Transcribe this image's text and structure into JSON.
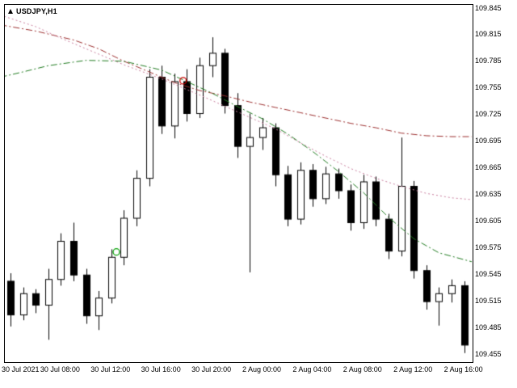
{
  "window": {
    "symbol_label": "USDJPY,H1"
  },
  "chart_data": {
    "type": "candlestick",
    "symbol": "USDJPY",
    "timeframe": "H1",
    "ylim": [
      109.455,
      109.845
    ],
    "price_ticks": [
      "109.845",
      "109.815",
      "109.785",
      "109.755",
      "109.725",
      "109.695",
      "109.665",
      "109.635",
      "109.605",
      "109.575",
      "109.545",
      "109.515",
      "109.485",
      "109.455"
    ],
    "time_ticks": [
      {
        "index": 0,
        "label": "30 Jul 2021"
      },
      {
        "index": 4,
        "label": "30 Jul 08:00"
      },
      {
        "index": 8,
        "label": "30 Jul 12:00"
      },
      {
        "index": 12,
        "label": "30 Jul 16:00"
      },
      {
        "index": 16,
        "label": "30 Jul 20:00"
      },
      {
        "index": 20,
        "label": "2 Aug 00:00"
      },
      {
        "index": 24,
        "label": "2 Aug 04:00"
      },
      {
        "index": 28,
        "label": "2 Aug 08:00"
      },
      {
        "index": 32,
        "label": "2 Aug 12:00"
      },
      {
        "index": 36,
        "label": "2 Aug 16:00"
      }
    ],
    "candles": [
      {
        "t": "30 Jul 04:00",
        "o": 109.538,
        "h": 109.547,
        "l": 109.487,
        "c": 109.5
      },
      {
        "t": "30 Jul 05:00",
        "o": 109.5,
        "h": 109.531,
        "l": 109.494,
        "c": 109.524
      },
      {
        "t": "30 Jul 06:00",
        "o": 109.524,
        "h": 109.529,
        "l": 109.502,
        "c": 109.511
      },
      {
        "t": "30 Jul 07:00",
        "o": 109.511,
        "h": 109.552,
        "l": 109.472,
        "c": 109.54
      },
      {
        "t": "30 Jul 08:00",
        "o": 109.54,
        "h": 109.592,
        "l": 109.533,
        "c": 109.583
      },
      {
        "t": "30 Jul 09:00",
        "o": 109.583,
        "h": 109.604,
        "l": 109.538,
        "c": 109.545
      },
      {
        "t": "30 Jul 10:00",
        "o": 109.545,
        "h": 109.552,
        "l": 109.49,
        "c": 109.499
      },
      {
        "t": "30 Jul 11:00",
        "o": 109.499,
        "h": 109.527,
        "l": 109.483,
        "c": 109.519
      },
      {
        "t": "30 Jul 12:00",
        "o": 109.519,
        "h": 109.574,
        "l": 109.513,
        "c": 109.565
      },
      {
        "t": "30 Jul 13:00",
        "o": 109.565,
        "h": 109.618,
        "l": 109.556,
        "c": 109.609
      },
      {
        "t": "30 Jul 14:00",
        "o": 109.609,
        "h": 109.663,
        "l": 109.6,
        "c": 109.654
      },
      {
        "t": "30 Jul 15:00",
        "o": 109.654,
        "h": 109.777,
        "l": 109.645,
        "c": 109.768
      },
      {
        "t": "30 Jul 16:00",
        "o": 109.768,
        "h": 109.781,
        "l": 109.704,
        "c": 109.713
      },
      {
        "t": "30 Jul 17:00",
        "o": 109.713,
        "h": 109.772,
        "l": 109.699,
        "c": 109.763
      },
      {
        "t": "30 Jul 18:00",
        "o": 109.763,
        "h": 109.777,
        "l": 109.718,
        "c": 109.727
      },
      {
        "t": "30 Jul 19:00",
        "o": 109.727,
        "h": 109.79,
        "l": 109.722,
        "c": 109.781
      },
      {
        "t": "30 Jul 20:00",
        "o": 109.781,
        "h": 109.813,
        "l": 109.768,
        "c": 109.795
      },
      {
        "t": "30 Jul 21:00",
        "o": 109.795,
        "h": 109.8,
        "l": 109.727,
        "c": 109.736
      },
      {
        "t": "30 Jul 22:00",
        "o": 109.736,
        "h": 109.75,
        "l": 109.677,
        "c": 109.69
      },
      {
        "t": "30 Jul 23:00",
        "o": 109.69,
        "h": 109.727,
        "l": 109.548,
        "c": 109.7
      },
      {
        "t": "2 Aug 00:00",
        "o": 109.7,
        "h": 109.722,
        "l": 109.686,
        "c": 109.711
      },
      {
        "t": "2 Aug 01:00",
        "o": 109.711,
        "h": 109.716,
        "l": 109.645,
        "c": 109.658
      },
      {
        "t": "2 Aug 02:00",
        "o": 109.658,
        "h": 109.668,
        "l": 109.6,
        "c": 109.608
      },
      {
        "t": "2 Aug 03:00",
        "o": 109.608,
        "h": 109.672,
        "l": 109.602,
        "c": 109.663
      },
      {
        "t": "2 Aug 04:00",
        "o": 109.663,
        "h": 109.67,
        "l": 109.622,
        "c": 109.631
      },
      {
        "t": "2 Aug 05:00",
        "o": 109.631,
        "h": 109.667,
        "l": 109.625,
        "c": 109.659
      },
      {
        "t": "2 Aug 06:00",
        "o": 109.659,
        "h": 109.665,
        "l": 109.631,
        "c": 109.64
      },
      {
        "t": "2 Aug 07:00",
        "o": 109.64,
        "h": 109.647,
        "l": 109.595,
        "c": 109.604
      },
      {
        "t": "2 Aug 08:00",
        "o": 109.604,
        "h": 109.658,
        "l": 109.597,
        "c": 109.65
      },
      {
        "t": "2 Aug 09:00",
        "o": 109.65,
        "h": 109.656,
        "l": 109.6,
        "c": 109.608
      },
      {
        "t": "2 Aug 10:00",
        "o": 109.608,
        "h": 109.614,
        "l": 109.563,
        "c": 109.572
      },
      {
        "t": "2 Aug 11:00",
        "o": 109.572,
        "h": 109.7,
        "l": 109.566,
        "c": 109.645
      },
      {
        "t": "2 Aug 12:00",
        "o": 109.645,
        "h": 109.651,
        "l": 109.541,
        "c": 109.55
      },
      {
        "t": "2 Aug 13:00",
        "o": 109.55,
        "h": 109.556,
        "l": 109.506,
        "c": 109.515
      },
      {
        "t": "2 Aug 14:00",
        "o": 109.515,
        "h": 109.531,
        "l": 109.488,
        "c": 109.524
      },
      {
        "t": "2 Aug 15:00",
        "o": 109.524,
        "h": 109.54,
        "l": 109.514,
        "c": 109.533
      },
      {
        "t": "2 Aug 16:00",
        "o": 109.533,
        "h": 109.538,
        "l": 109.457,
        "c": 109.466
      }
    ],
    "moving_averages": [
      {
        "name": "ma-slow-red",
        "color": "#9b2d2d",
        "style": "dash-dot",
        "points": [
          [
            -0.8,
            109.827
          ],
          [
            2,
            109.82
          ],
          [
            5,
            109.81
          ],
          [
            7,
            109.8
          ],
          [
            9,
            109.786
          ],
          [
            11,
            109.774
          ],
          [
            13,
            109.762
          ],
          [
            15,
            109.753
          ],
          [
            17,
            109.747
          ],
          [
            19,
            109.74
          ],
          [
            21,
            109.734
          ],
          [
            23,
            109.728
          ],
          [
            25,
            109.722
          ],
          [
            27,
            109.716
          ],
          [
            29,
            109.711
          ],
          [
            31,
            109.705
          ],
          [
            33,
            109.702
          ],
          [
            35,
            109.701
          ],
          [
            36.6,
            109.701
          ]
        ]
      },
      {
        "name": "ma-fast-pink",
        "color": "#c77b9b",
        "style": "dot",
        "points": [
          [
            -0.8,
            109.838
          ],
          [
            2,
            109.825
          ],
          [
            4,
            109.812
          ],
          [
            6,
            109.8
          ],
          [
            9,
            109.782
          ],
          [
            12,
            109.766
          ],
          [
            15,
            109.748
          ],
          [
            18,
            109.729
          ],
          [
            21,
            109.71
          ],
          [
            23,
            109.694
          ],
          [
            25,
            109.679
          ],
          [
            27,
            109.665
          ],
          [
            29,
            109.654
          ],
          [
            31,
            109.645
          ],
          [
            33,
            109.637
          ],
          [
            35,
            109.632
          ],
          [
            36.6,
            109.63
          ]
        ]
      },
      {
        "name": "ma-green",
        "color": "#1f7a1f",
        "style": "dash-dot",
        "points": [
          [
            -0.8,
            109.768
          ],
          [
            1,
            109.774
          ],
          [
            3,
            109.781
          ],
          [
            6,
            109.787
          ],
          [
            9,
            109.786
          ],
          [
            12,
            109.776
          ],
          [
            14,
            109.763
          ],
          [
            16,
            109.75
          ],
          [
            18,
            109.735
          ],
          [
            20,
            109.721
          ],
          [
            22,
            109.704
          ],
          [
            24,
            109.684
          ],
          [
            26,
            109.662
          ],
          [
            28,
            109.638
          ],
          [
            30,
            109.61
          ],
          [
            32,
            109.586
          ],
          [
            34,
            109.57
          ],
          [
            36.6,
            109.56
          ]
        ]
      }
    ],
    "markers": [
      {
        "index": 8.4,
        "price": 109.571,
        "color": "#00a000",
        "shape": "circle"
      },
      {
        "index": 13.7,
        "price": 109.764,
        "color": "#cc0000",
        "shape": "circle"
      }
    ],
    "colors": {
      "bull_fill": "#ffffff",
      "bear_fill": "#000000",
      "outline": "#000000",
      "background": "#ffffff"
    }
  }
}
